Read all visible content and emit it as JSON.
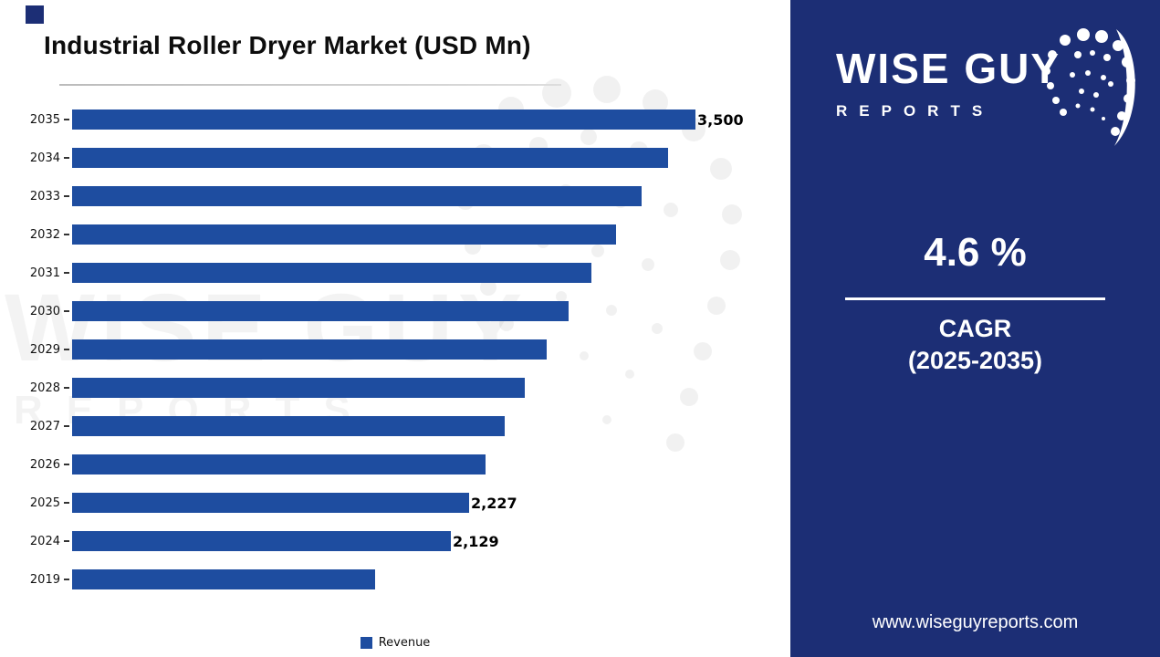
{
  "title": "Industrial Roller Dryer Market (USD Mn)",
  "legend": {
    "label": "Revenue"
  },
  "chart_data": {
    "type": "bar",
    "orientation": "horizontal",
    "title": "Industrial Roller Dryer Market (USD Mn)",
    "categories": [
      "2035",
      "2034",
      "2033",
      "2032",
      "2031",
      "2030",
      "2029",
      "2028",
      "2027",
      "2026",
      "2025",
      "2024",
      "2019"
    ],
    "values": [
      3500,
      3346,
      3196,
      3053,
      2917,
      2787,
      2663,
      2544,
      2430,
      2322,
      2227,
      2129,
      1700
    ],
    "data_labels": {
      "2035": "3,500",
      "2025": "2,227",
      "2024": "2,129"
    },
    "xlim": [
      0,
      3500
    ],
    "xlabel": "",
    "ylabel": "",
    "grid": false,
    "legend_position": "bottom-center",
    "bar_color": "#1e4da0",
    "series_name": "Revenue"
  },
  "colors": {
    "bar": "#1e4da0",
    "sidebar_bg": "#1c2e75",
    "accent_square": "#1c2e75"
  },
  "watermark": {
    "line1": "WISE GUY",
    "line2": "REPORTS"
  },
  "sidebar": {
    "logo_line1": "WISE GUY",
    "logo_line2": "REPORTS",
    "cagr_value": "4.6 %",
    "cagr_label_line1": "CAGR",
    "cagr_label_line2": "(2025-2035)",
    "website": "www.wiseguyreports.com"
  }
}
